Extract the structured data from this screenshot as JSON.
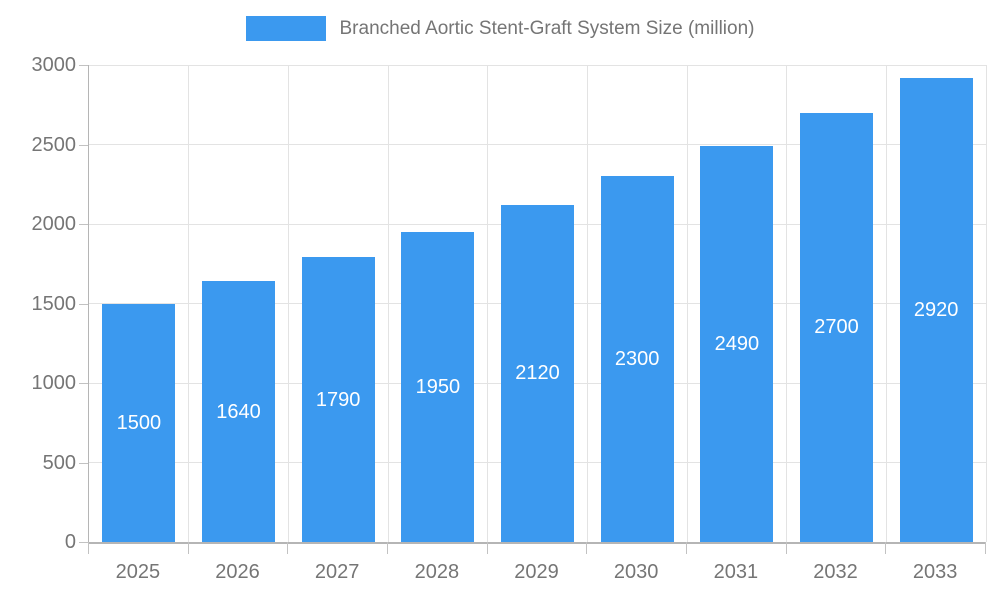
{
  "legend": {
    "position": "top",
    "series_label": "Branched Aortic Stent-Graft System Size (million)"
  },
  "colors": {
    "bar": "#3B99EF",
    "grid": "#E3E3E3",
    "axis": "#B5B5B5",
    "tick": "#C2C2C2",
    "text": "#757575",
    "bar_label_text": "#FFFFFF",
    "background": "#FFFFFF"
  },
  "chart_data": {
    "type": "bar",
    "categories": [
      "2025",
      "2026",
      "2027",
      "2028",
      "2029",
      "2030",
      "2031",
      "2032",
      "2033"
    ],
    "series": [
      {
        "name": "Branched Aortic Stent-Graft System Size (million)",
        "values": [
          1500,
          1640,
          1790,
          1950,
          2120,
          2300,
          2490,
          2700,
          2920
        ]
      }
    ],
    "title": "",
    "xlabel": "",
    "ylabel": "",
    "ylim": [
      0,
      3000
    ],
    "yticks": [
      0,
      500,
      1000,
      1500,
      2000,
      2500,
      3000
    ],
    "grid": true,
    "legend_position": "top",
    "bar_value_labels": "inside-middle"
  }
}
